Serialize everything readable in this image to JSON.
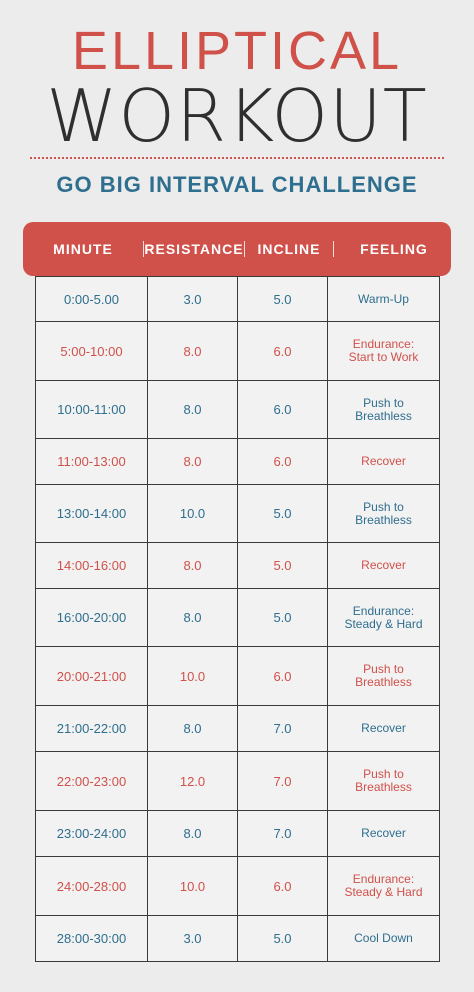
{
  "title_line1": "ELLIPTICAL",
  "title_line2": "WORKOUT",
  "subtitle": "GO BIG INTERVAL CHALLENGE",
  "colors": {
    "accent_red": "#d0504a",
    "accent_blue": "#2e6e8e",
    "background": "#ececec",
    "title_dark": "#2f2f2f"
  },
  "columns": [
    "MINUTE",
    "RESISTANCE",
    "INCLINE",
    "FEELING"
  ],
  "rows": [
    {
      "minute": "0:00-5.00",
      "resistance": "3.0",
      "incline": "5.0",
      "feeling_line1": "Warm-Up",
      "feeling_line2": "",
      "color": "blue"
    },
    {
      "minute": "5:00-10:00",
      "resistance": "8.0",
      "incline": "6.0",
      "feeling_line1": "Endurance:",
      "feeling_line2": "Start to Work",
      "color": "red"
    },
    {
      "minute": "10:00-11:00",
      "resistance": "8.0",
      "incline": "6.0",
      "feeling_line1": "Push to",
      "feeling_line2": "Breathless",
      "color": "blue"
    },
    {
      "minute": "11:00-13:00",
      "resistance": "8.0",
      "incline": "6.0",
      "feeling_line1": "Recover",
      "feeling_line2": "",
      "color": "red"
    },
    {
      "minute": "13:00-14:00",
      "resistance": "10.0",
      "incline": "5.0",
      "feeling_line1": "Push to",
      "feeling_line2": "Breathless",
      "color": "blue"
    },
    {
      "minute": "14:00-16:00",
      "resistance": "8.0",
      "incline": "5.0",
      "feeling_line1": "Recover",
      "feeling_line2": "",
      "color": "red"
    },
    {
      "minute": "16:00-20:00",
      "resistance": "8.0",
      "incline": "5.0",
      "feeling_line1": "Endurance:",
      "feeling_line2": "Steady & Hard",
      "color": "blue"
    },
    {
      "minute": "20:00-21:00",
      "resistance": "10.0",
      "incline": "6.0",
      "feeling_line1": "Push to",
      "feeling_line2": "Breathless",
      "color": "red"
    },
    {
      "minute": "21:00-22:00",
      "resistance": "8.0",
      "incline": "7.0",
      "feeling_line1": "Recover",
      "feeling_line2": "",
      "color": "blue"
    },
    {
      "minute": "22:00-23:00",
      "resistance": "12.0",
      "incline": "7.0",
      "feeling_line1": "Push to",
      "feeling_line2": "Breathless",
      "color": "red"
    },
    {
      "minute": "23:00-24:00",
      "resistance": "8.0",
      "incline": "7.0",
      "feeling_line1": "Recover",
      "feeling_line2": "",
      "color": "blue"
    },
    {
      "minute": "24:00-28:00",
      "resistance": "10.0",
      "incline": "6.0",
      "feeling_line1": "Endurance:",
      "feeling_line2": "Steady & Hard",
      "color": "red"
    },
    {
      "minute": "28:00-30:00",
      "resistance": "3.0",
      "incline": "5.0",
      "feeling_line1": "Cool Down",
      "feeling_line2": "",
      "color": "blue"
    }
  ]
}
